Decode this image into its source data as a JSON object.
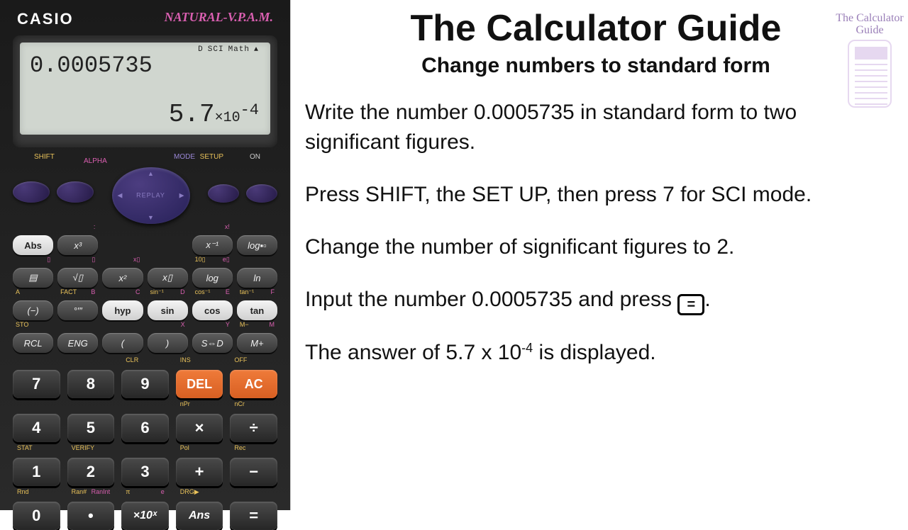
{
  "calc": {
    "brand": "CASIO",
    "model": "NATURAL-V.P.A.M.",
    "screen": {
      "indicators": [
        "D",
        "SCI",
        "Math",
        "▲"
      ],
      "line1": "0.0005735",
      "line2_value": "5.7",
      "line2_exp": "-4"
    },
    "fn_labels": {
      "shift": "SHIFT",
      "alpha": "ALPHA",
      "mode": "MODE",
      "setup": "SETUP",
      "on": "ON",
      "replay": "REPLAY"
    },
    "rows_small": [
      [
        {
          "y": "",
          "p": "",
          "k": "Abs",
          "white": true
        },
        {
          "y": "",
          "p": ":",
          "k": "x³"
        },
        {
          "y": "",
          "p": "",
          "k": ""
        },
        {
          "y": "",
          "p": "",
          "k": ""
        },
        {
          "y": "",
          "p": "x!",
          "k": "x⁻¹"
        },
        {
          "y": "",
          "p": "",
          "k": "log▪▫"
        }
      ],
      [
        {
          "y": "",
          "p": "▯",
          "k": "▤"
        },
        {
          "y": "",
          "p": "▯",
          "k": "√▯"
        },
        {
          "y": "",
          "p": "x▯",
          "k": "x²"
        },
        {
          "y": "",
          "p": "",
          "k": "x▯"
        },
        {
          "y": "10▯",
          "p": "e▯",
          "k": "log"
        },
        {
          "y": "",
          "p": "",
          "k": "ln"
        }
      ],
      [
        {
          "y": "A",
          "p": "",
          "k": "(−)"
        },
        {
          "y": "FACT",
          "p": "B",
          "k": "°′″"
        },
        {
          "y": "",
          "p": "C",
          "k": "hyp",
          "white": true
        },
        {
          "y": "sin⁻¹",
          "p": "D",
          "k": "sin",
          "white": true
        },
        {
          "y": "cos⁻¹",
          "p": "E",
          "k": "cos",
          "white": true
        },
        {
          "y": "tan⁻¹",
          "p": "F",
          "k": "tan",
          "white": true
        }
      ],
      [
        {
          "y": "STO",
          "p": "",
          "k": "RCL"
        },
        {
          "y": "",
          "p": "",
          "k": "ENG"
        },
        {
          "y": "",
          "p": "",
          "k": "("
        },
        {
          "y": "",
          "p": "X",
          "k": ")"
        },
        {
          "y": "",
          "p": "Y",
          "k": "S⇔D"
        },
        {
          "y": "M−",
          "p": "M",
          "k": "M+"
        }
      ]
    ],
    "rows_big": [
      [
        {
          "y": "",
          "p": "",
          "k": "7"
        },
        {
          "y": "",
          "p": "",
          "k": "8"
        },
        {
          "y": "CLR",
          "p": "",
          "k": "9"
        },
        {
          "y": "INS",
          "p": "",
          "k": "DEL",
          "style": "orange"
        },
        {
          "y": "OFF",
          "p": "",
          "k": "AC",
          "style": "orange"
        }
      ],
      [
        {
          "y": "",
          "p": "",
          "k": "4"
        },
        {
          "y": "",
          "p": "",
          "k": "5"
        },
        {
          "y": "",
          "p": "",
          "k": "6"
        },
        {
          "y": "nPr",
          "p": "",
          "k": "×"
        },
        {
          "y": "nCr",
          "p": "",
          "k": "÷"
        }
      ],
      [
        {
          "y": "STAT",
          "p": "",
          "k": "1"
        },
        {
          "y": "VERIFY",
          "p": "",
          "k": "2"
        },
        {
          "y": "",
          "p": "",
          "k": "3"
        },
        {
          "y": "Pol",
          "p": "",
          "k": "+"
        },
        {
          "y": "Rec",
          "p": "",
          "k": "−"
        }
      ],
      [
        {
          "y": "Rnd",
          "p": "",
          "k": "0"
        },
        {
          "y": "Ran#",
          "p": "RanInt",
          "k": "•"
        },
        {
          "y": "π",
          "p": "e",
          "k": "×10ˣ",
          "style": "small"
        },
        {
          "y": "DRG▶",
          "p": "",
          "k": "Ans",
          "style": "small"
        },
        {
          "y": "",
          "p": "",
          "k": "="
        }
      ]
    ]
  },
  "content": {
    "title": "The Calculator Guide",
    "subtitle": "Change numbers to standard form",
    "p1": "Write the number 0.0005735 in standard form to two significant figures.",
    "p2": "Press SHIFT, the SET UP, then press 7 for SCI mode.",
    "p3": "Change the number of significant figures to 2.",
    "p4a": "Input the number 0.0005735 and press ",
    "p4b": ".",
    "p5a": "The answer of 5.7 x 10",
    "p5exp": "-4",
    "p5b": " is displayed.",
    "logo_line1": "The Calculator",
    "logo_line2": "Guide"
  },
  "colors": {
    "yellow": "#e9c25a",
    "pink": "#d95fb0",
    "purple": "#4a3a78",
    "orange": "#ef7b3a",
    "lcd": "#d0d6cf"
  }
}
